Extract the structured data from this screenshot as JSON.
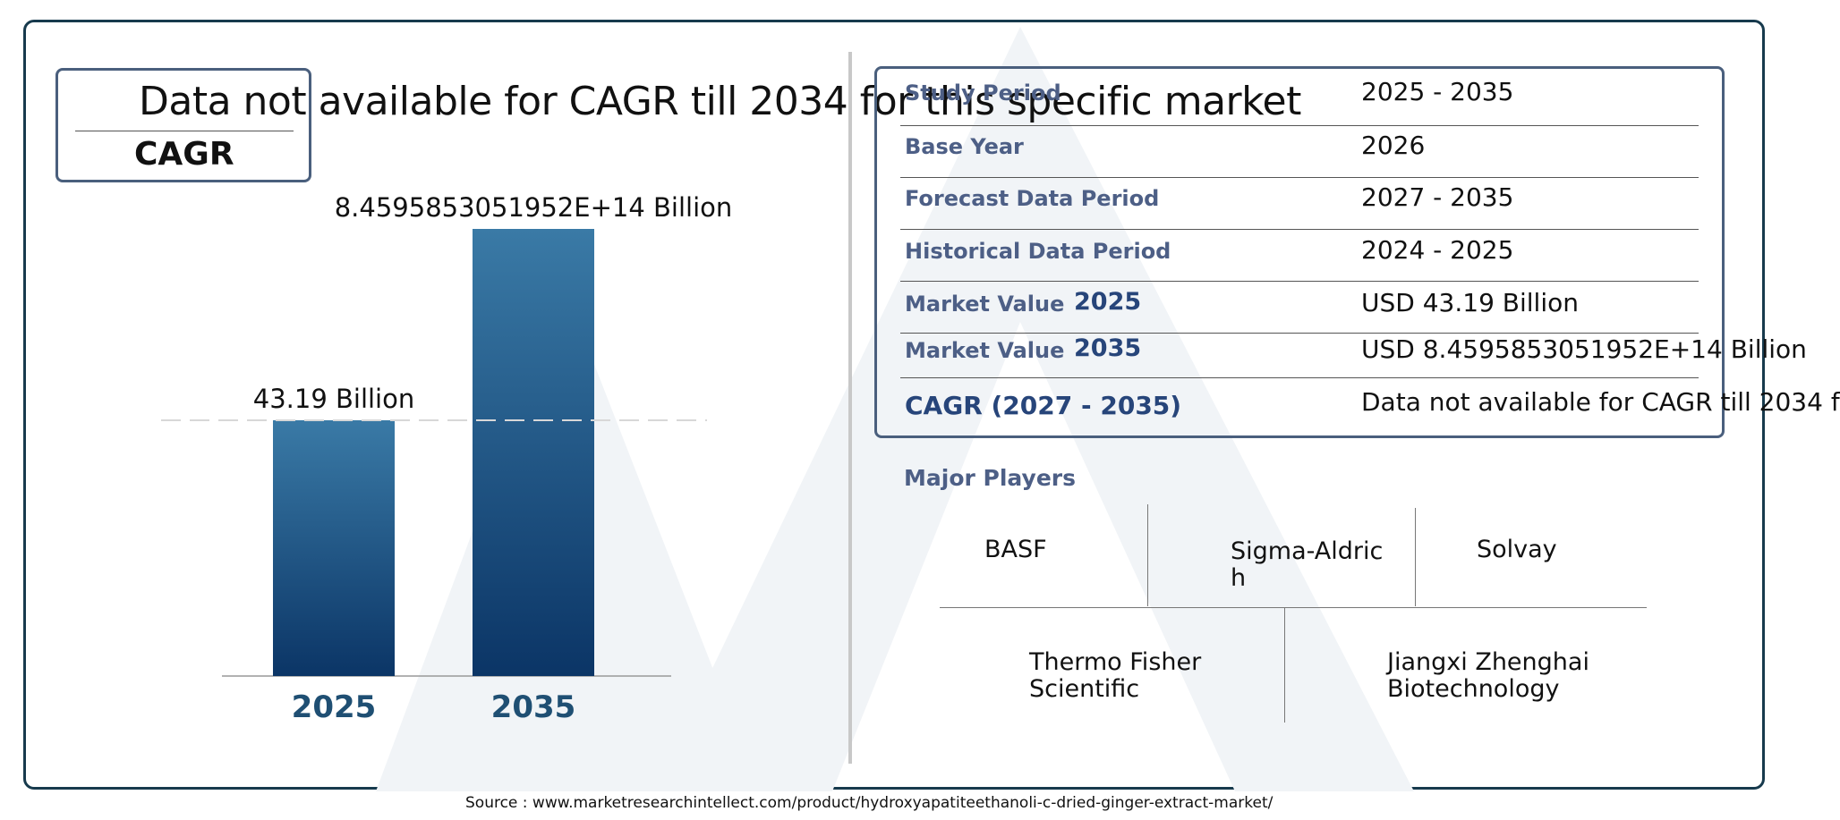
{
  "cagr_box": {
    "label": "CAGR",
    "text": "Data not available for CAGR till 2034 for this specific market"
  },
  "chart_data": {
    "type": "bar",
    "categories": [
      "2025",
      "2035"
    ],
    "values": [
      43.19,
      845958530519520
    ],
    "value_labels": [
      "43.19 Billion",
      "8.4595853051952E+14 Billion"
    ],
    "title": "",
    "xlabel": "",
    "ylabel": "",
    "colors": {
      "bar_top": "#3a7aa6",
      "bar_bottom": "#0b3566",
      "axis_label": "#1f4f73"
    }
  },
  "info_table": {
    "rows": [
      {
        "label": "Study Period",
        "year": "",
        "value": "2025 - 2035"
      },
      {
        "label": "Base Year",
        "year": "",
        "value": "2026"
      },
      {
        "label": "Forecast Data Period",
        "year": "",
        "value": "2027 - 2035"
      },
      {
        "label": "Historical Data Period",
        "year": "",
        "value": "2024 - 2025"
      },
      {
        "label": "Market Value",
        "year": "2025",
        "value": "USD 43.19 Billion"
      },
      {
        "label": "Market Value",
        "year": "2035",
        "value": "USD 8.4595853051952E+14 Billion"
      },
      {
        "label": "CAGR (2027 - 2035)",
        "year": "",
        "value": "Data not available for CAGR till 2034 f"
      }
    ]
  },
  "players": {
    "title": "Major Players",
    "names": [
      "BASF",
      "Sigma-Aldric\nh",
      "Solvay",
      "Thermo Fisher\nScientific",
      "Jiangxi Zhenghai\nBiotechnology"
    ]
  },
  "source": "Source : www.marketresearchintellect.com/product/hydroxyapatiteethanoli-c-dried-ginger-extract-market/",
  "colors": {
    "frame": "#173a4d",
    "box_border": "#4a5f7d",
    "label_blue": "#4d5f86"
  }
}
